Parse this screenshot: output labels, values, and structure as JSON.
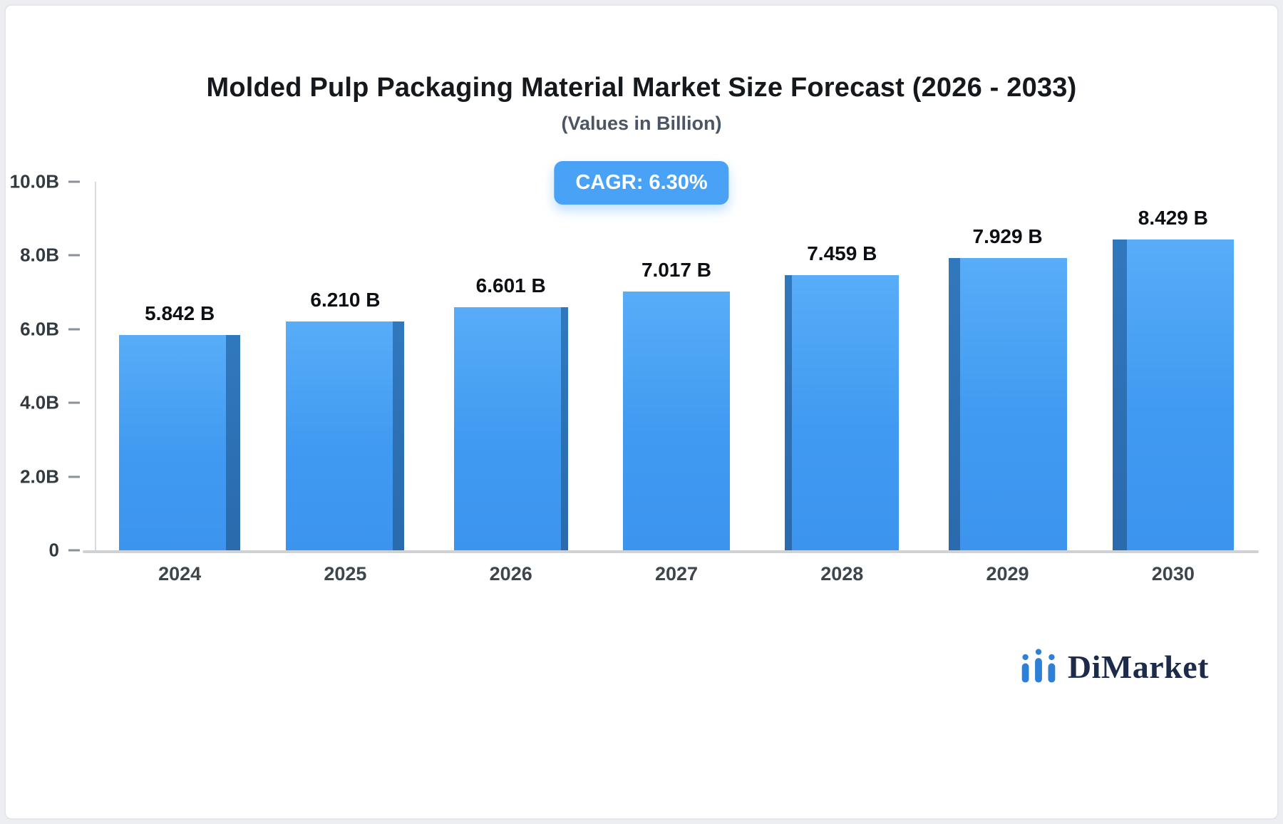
{
  "header": {
    "title": "Molded Pulp Packaging Material Market Size Forecast (2026 - 2033)",
    "subtitle": "(Values in Billion)",
    "badge_label": "CAGR: 6.30%"
  },
  "logo": {
    "text": "DiMarket",
    "accent_color": "#2e7fd6"
  },
  "chart_data": {
    "type": "bar",
    "title": "Molded Pulp Packaging Material Market Size Forecast (2026 - 2033)",
    "subtitle": "(Values in Billion)",
    "categories": [
      "2024",
      "2025",
      "2026",
      "2027",
      "2028",
      "2029",
      "2030"
    ],
    "values": [
      5.842,
      6.21,
      6.601,
      7.017,
      7.459,
      7.929,
      8.429
    ],
    "value_labels": [
      "5.842 B",
      "6.210 B",
      "6.601 B",
      "7.017 B",
      "7.459 B",
      "7.929 B",
      "8.429 B"
    ],
    "xlabel": "",
    "ylabel": "",
    "ylim": [
      0,
      10
    ],
    "yticks": [
      {
        "label": "10.0B",
        "value": 10
      },
      {
        "label": "8.0B",
        "value": 8
      },
      {
        "label": "6.0B",
        "value": 6
      },
      {
        "label": "4.0B",
        "value": 4
      },
      {
        "label": "2.0B",
        "value": 2
      },
      {
        "label": "0",
        "value": 0
      }
    ],
    "grid": false,
    "legend": false,
    "bar_color_top": "#58adf8",
    "bar_color_bottom": "#3c94ee",
    "bar_side_color": "#2a6aad",
    "cagr": "6.30%"
  }
}
